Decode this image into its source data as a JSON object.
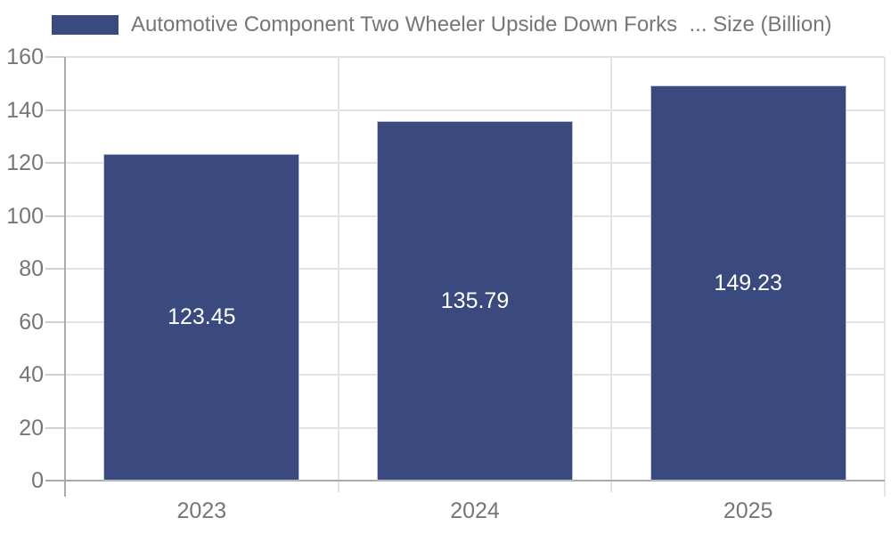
{
  "legend": {
    "label": "Automotive Component Two Wheeler Upside Down Forks  ... Size (Billion)",
    "swatch_color": "#3A497E"
  },
  "chart_data": {
    "type": "bar",
    "title": "Automotive Component Two Wheeler Upside Down Forks ... Size (Billion)",
    "categories": [
      "2023",
      "2024",
      "2025"
    ],
    "series": [
      {
        "name": "Automotive Component Two Wheeler Upside Down Forks  ... Size (Billion)",
        "values": [
          123.45,
          135.79,
          149.23
        ],
        "value_labels": [
          "123.45",
          "135.79",
          "149.23"
        ],
        "color": "#3A497E"
      }
    ],
    "xlabel": "",
    "ylabel": "",
    "ylim": [
      0,
      160
    ],
    "y_ticks": [
      0,
      20,
      40,
      60,
      80,
      100,
      120,
      140,
      160
    ],
    "grid": true,
    "legend_position": "top-left",
    "colors": {
      "bar_fill": "#3A497E",
      "bar_border": "#C4C6D0",
      "value_label": "#FFFFFF",
      "axis_text": "#767676",
      "grid_line": "#E3E3E3",
      "axis_line": "#A9A9B0",
      "tick": "#D0D0D0"
    }
  }
}
